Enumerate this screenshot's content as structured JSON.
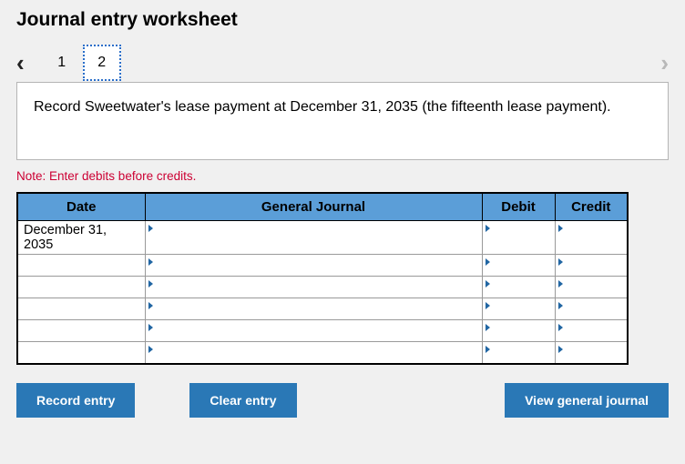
{
  "title": "Journal entry worksheet",
  "pager": {
    "prev_glyph": "‹",
    "next_glyph": "›",
    "items": [
      "1",
      "2"
    ],
    "active_index": 1
  },
  "instruction": "Record Sweetwater's lease payment at December 31, 2035 (the fifteenth lease payment).",
  "note": "Note: Enter debits before credits.",
  "table": {
    "headers": {
      "date": "Date",
      "gj": "General Journal",
      "debit": "Debit",
      "credit": "Credit"
    },
    "rows": [
      {
        "date": "December 31, 2035",
        "gj": "",
        "debit": "",
        "credit": ""
      },
      {
        "date": "",
        "gj": "",
        "debit": "",
        "credit": ""
      },
      {
        "date": "",
        "gj": "",
        "debit": "",
        "credit": ""
      },
      {
        "date": "",
        "gj": "",
        "debit": "",
        "credit": ""
      },
      {
        "date": "",
        "gj": "",
        "debit": "",
        "credit": ""
      },
      {
        "date": "",
        "gj": "",
        "debit": "",
        "credit": ""
      }
    ]
  },
  "buttons": {
    "record": "Record entry",
    "clear": "Clear entry",
    "view": "View general journal"
  },
  "colors": {
    "header_bg": "#5b9ed8",
    "button_bg": "#2a78b6",
    "note_color": "#cc0033",
    "dd_marker": "#2166a3",
    "page_bg": "#f0f0f0"
  }
}
